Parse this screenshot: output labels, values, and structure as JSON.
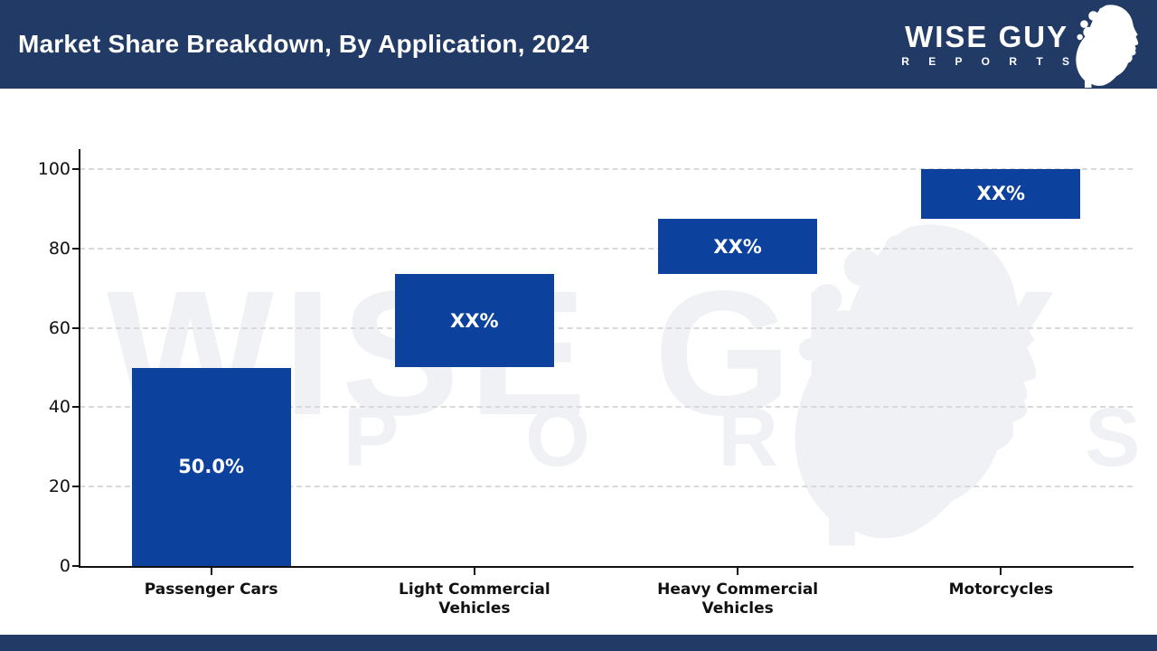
{
  "theme": {
    "navy": "#213a66",
    "bar_blue": "#0c429d",
    "grid_gray": "#d9d9d9",
    "watermark_gray": "#f0f1f4",
    "text_black": "#111111"
  },
  "header": {
    "title": "Market Share Breakdown, By Application, 2024",
    "logo": {
      "line1": "WISE GUY",
      "line2": "R E P O R T S"
    }
  },
  "watermark": {
    "line1": "WISE GUY",
    "line2": "P O R T S"
  },
  "chart_data": {
    "type": "bar",
    "subtype": "waterfall",
    "title": "Market Share Breakdown, By Application, 2024",
    "xlabel": "",
    "ylabel": "",
    "ylim": [
      0,
      100
    ],
    "yticks": [
      0,
      20,
      40,
      60,
      80,
      100
    ],
    "grid": "horizontal-dashed",
    "bar_color": "#0c429d",
    "categories": [
      "Passenger Cars",
      "Light Commercial Vehicles",
      "Heavy Commercial Vehicles",
      "Motorcycles"
    ],
    "segments": [
      {
        "category": "Passenger Cars",
        "start": 0,
        "end": 50.0,
        "label": "50.0%"
      },
      {
        "category": "Light Commercial Vehicles",
        "start": 50.0,
        "end": 73.5,
        "label": "XX%"
      },
      {
        "category": "Heavy Commercial Vehicles",
        "start": 73.5,
        "end": 87.5,
        "label": "XX%"
      },
      {
        "category": "Motorcycles",
        "start": 87.5,
        "end": 100,
        "label": "XX%"
      }
    ]
  }
}
